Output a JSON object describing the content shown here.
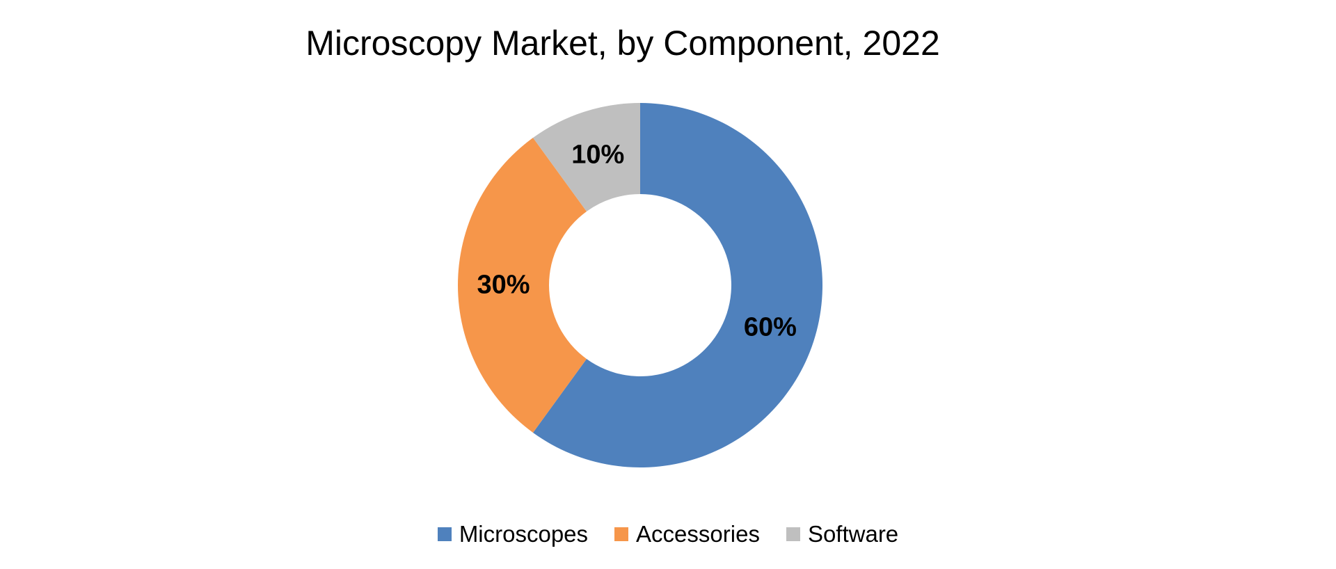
{
  "chart_data": {
    "type": "pie",
    "subtype": "donut",
    "title": "Microscopy Market, by Component, 2022",
    "categories": [
      "Microscopes",
      "Accessories",
      "Software"
    ],
    "values": [
      60,
      30,
      10
    ],
    "unit": "%",
    "data_labels": [
      "60%",
      "30%",
      "10%"
    ],
    "colors": [
      "#4F81BD",
      "#F6964A",
      "#BFBFBF"
    ],
    "label_color": "#000000",
    "title_color": "#000000",
    "start_angle_deg": 0,
    "direction": "clockwise",
    "donut_hole_ratio": 0.5,
    "grid": "off",
    "legend_position": "bottom"
  }
}
